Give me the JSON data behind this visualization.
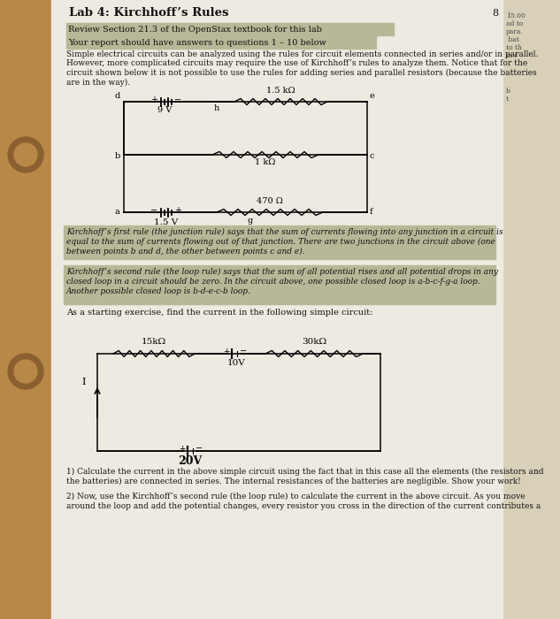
{
  "title": "Lab 4: Kirchhoff’s Rules",
  "page_num": "8",
  "highlight1": "Review Section 21.3 of the OpenStax textbook for this lab",
  "highlight2": "Your report should have answers to questions 1 – 10 below",
  "intro_text": "Simple electrical circuits can be analyzed using the rules for circuit elements connected in series and/or in parallel.\nHowever, more complicated circuits may require the use of Kirchhoff’s rules to analyze them. Notice that for the\ncircuit shown below it is not possible to use the rules for adding series and parallel resistors (because the batteries\nare in the way).",
  "kirchhoff1_text": "Kirchhoff’s first rule (the junction rule) says that the sum of currents flowing into any junction in a circuit is\nequal to the sum of currents flowing out of that junction. There are two junctions in the circuit above (one\nbetween points b and d, the other between points c and e).",
  "kirchhoff2_text": "Kirchhoff’s second rule (the loop rule) says that the sum of all potential rises and all potential drops in any\nclosed loop in a circuit should be zero. In the circuit above, one possible closed loop is a-b-c-f-g-a loop.\nAnother possible closed loop is b-d-e-c-b loop.",
  "starting_text": "As a starting exercise, find the current in the following simple circuit:",
  "question1": "1) Calculate the current in the above simple circuit using the fact that in this case all the elements (the resistors and\nthe batteries) are connected in series. The internal resistances of the batteries are negligible. Show your work!",
  "question2": "2) Now, use the Kirchhoff’s second rule (the loop rule) to calculate the current in the above circuit. As you move\naround the loop and add the potential changes, every resistor you cross in the direction of the current contributes a",
  "bg_color": "#c8a878",
  "paper_color": "#eeeae2",
  "highlight_color": "#b8b898",
  "right_strip_color": "#d8d0b8",
  "left_bind_color": "#b88848"
}
